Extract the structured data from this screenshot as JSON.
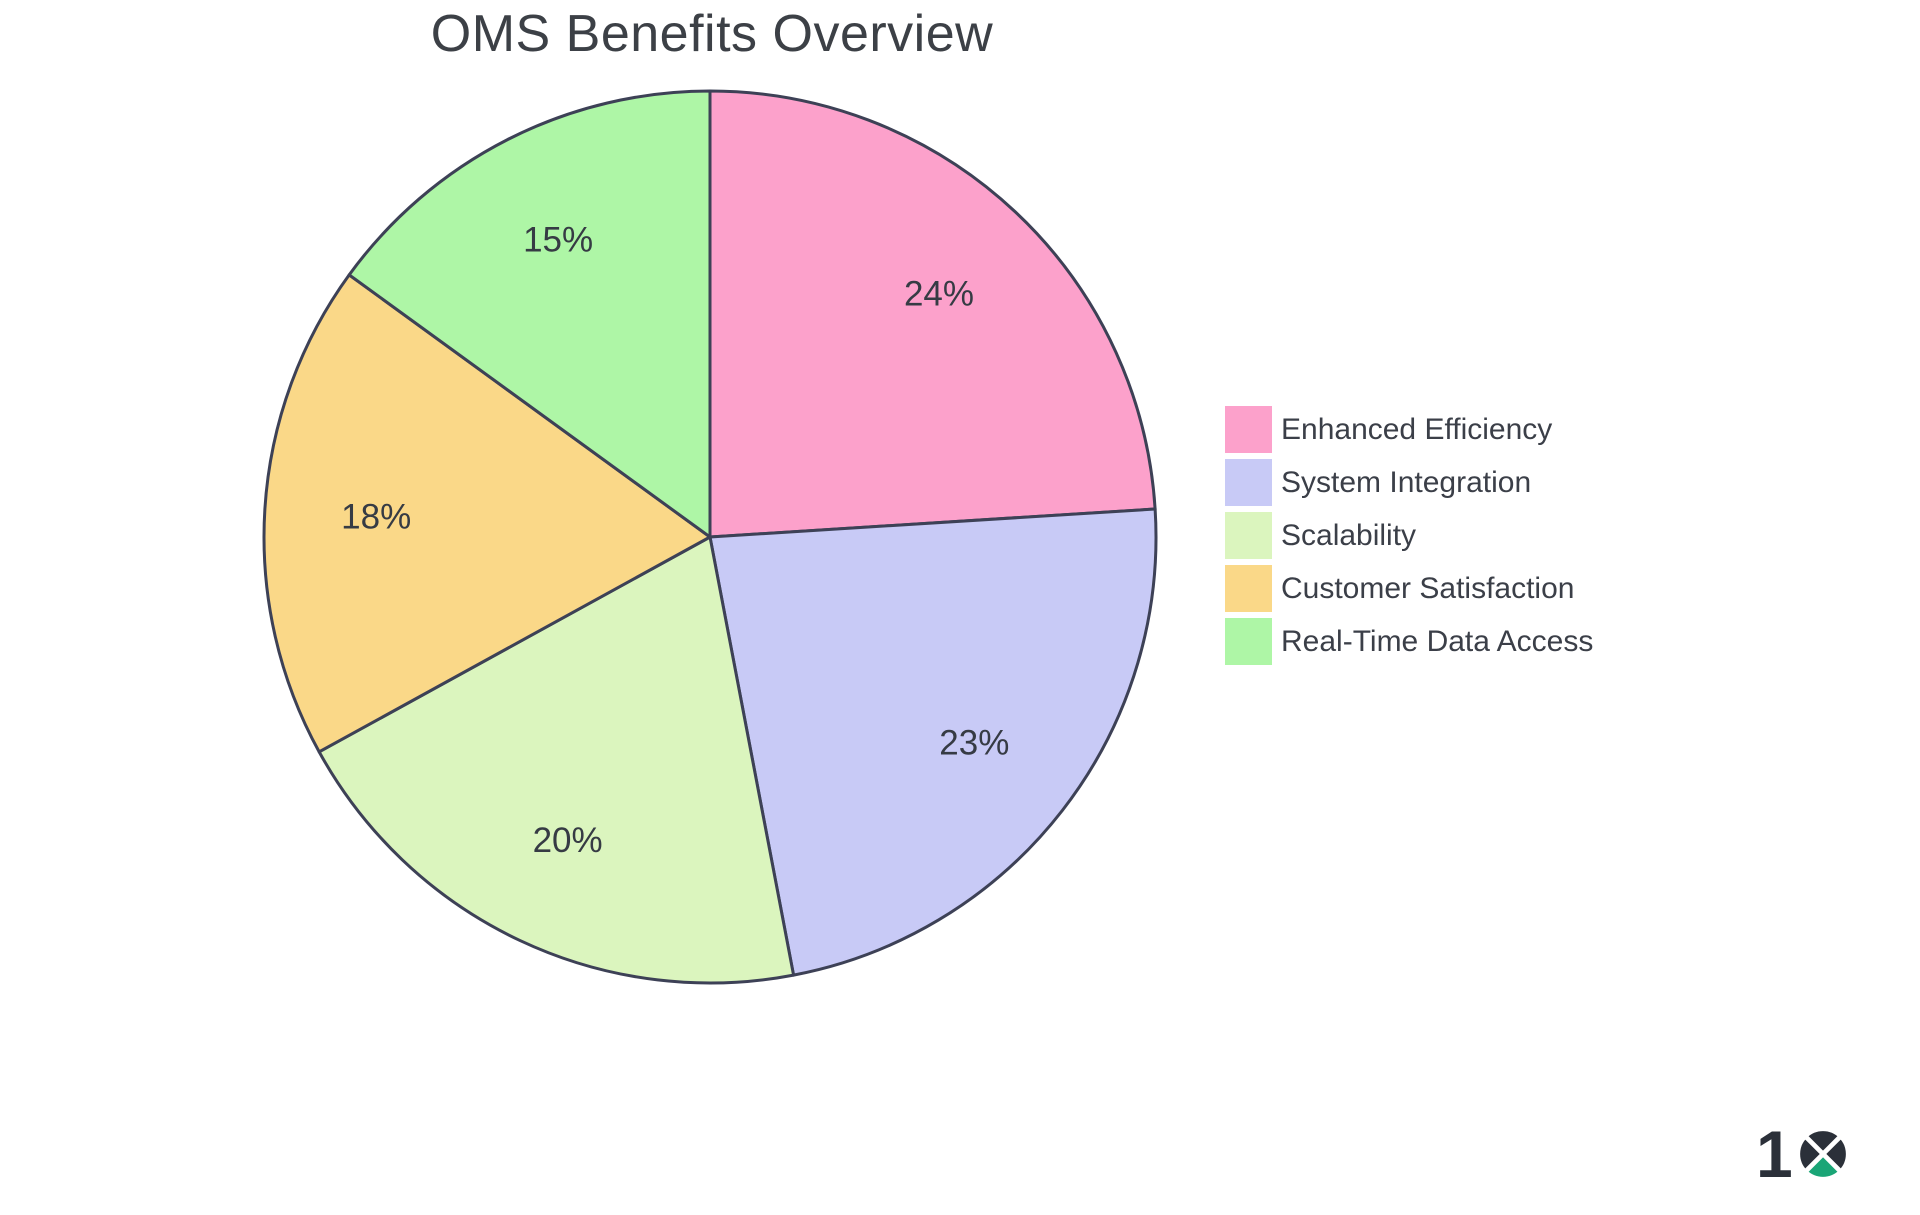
{
  "colors": {
    "background": "#FFFFFF",
    "slice_border": "#3D4156",
    "title_text": "#3C4046",
    "label_text": "#363B44",
    "legend_text": "#3B3F48",
    "logo_dark": "#2B3039",
    "logo_green": "#1AA576"
  },
  "chart_data": {
    "type": "pie",
    "title": "OMS Benefits Overview",
    "direction": "clockwise",
    "start_angle_deg": 0,
    "legend_position": "right",
    "labels_inside": "percent",
    "slices": [
      {
        "label": "Enhanced Efficiency",
        "value": 24,
        "percent_label": "24%",
        "color": "#FCA1CB"
      },
      {
        "label": "System Integration",
        "value": 23,
        "percent_label": "23%",
        "color": "#C8CAF6"
      },
      {
        "label": "Scalability",
        "value": 20,
        "percent_label": "20%",
        "color": "#DBF5BE"
      },
      {
        "label": "Customer Satisfaction",
        "value": 18,
        "percent_label": "18%",
        "color": "#FAD888"
      },
      {
        "label": "Real-Time Data Access",
        "value": 15,
        "percent_label": "15%",
        "color": "#AEF6A6"
      }
    ]
  },
  "logo": {
    "text": "1"
  }
}
